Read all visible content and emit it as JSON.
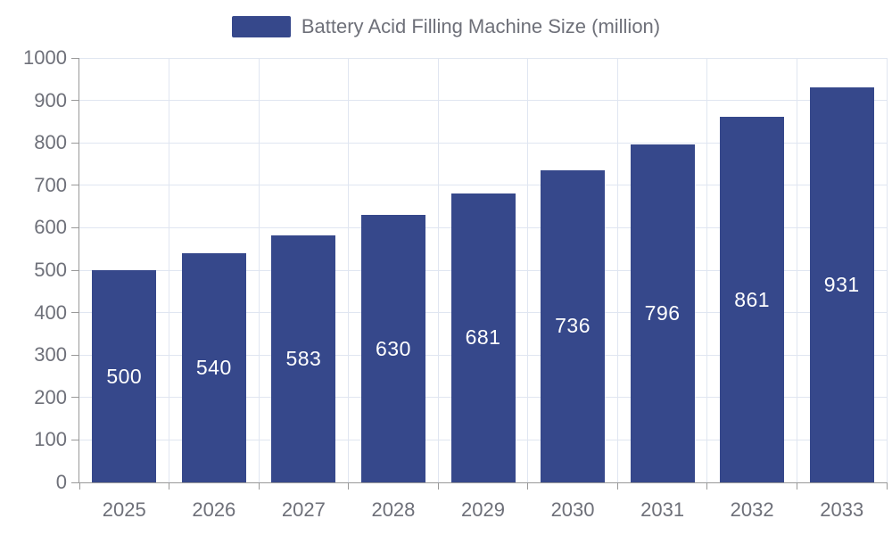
{
  "legend": {
    "label": "Battery Acid Filling Machine Size (million)"
  },
  "chart_data": {
    "type": "bar",
    "title": "",
    "series_name": "Battery Acid Filling Machine Size (million)",
    "categories": [
      "2025",
      "2026",
      "2027",
      "2028",
      "2029",
      "2030",
      "2031",
      "2032",
      "2033"
    ],
    "values": [
      500,
      540,
      583,
      630,
      681,
      736,
      796,
      861,
      931
    ],
    "xlabel": "",
    "ylabel": "",
    "ylim": [
      0,
      1000
    ],
    "ytick_interval": 100,
    "ytick_labels": [
      "0",
      "100",
      "200",
      "300",
      "400",
      "500",
      "600",
      "700",
      "800",
      "900",
      "1000"
    ],
    "grid": true,
    "legend_position": "top-center",
    "value_labels_position": "inside-center",
    "colors": {
      "bar": "#36488B",
      "value_label": "#ffffff",
      "grid_line": "#E0E6F1",
      "axis_line": "#999999",
      "axis_text": "#6E7079",
      "background": "#ffffff"
    }
  }
}
